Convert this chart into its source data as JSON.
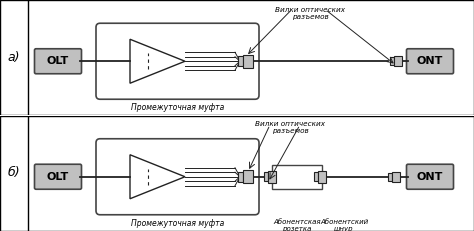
{
  "bg_color": "#ffffff",
  "border_color": "#000000",
  "panel_label_a": "а)",
  "panel_label_b": "б)",
  "olt_label": "OLT",
  "ont_label": "ONT",
  "label_mufta": "Промежуточная муфта",
  "label_vilki": "Вилки оптических\nразъемов",
  "label_rozetka": "Абонентская\nрозетка",
  "label_shnur": "Абонентский\nшнур",
  "gray_light": "#c0c0c0",
  "gray_dark": "#888888",
  "box_border": "#444444",
  "line_color": "#222222",
  "conn_color": "#666666"
}
